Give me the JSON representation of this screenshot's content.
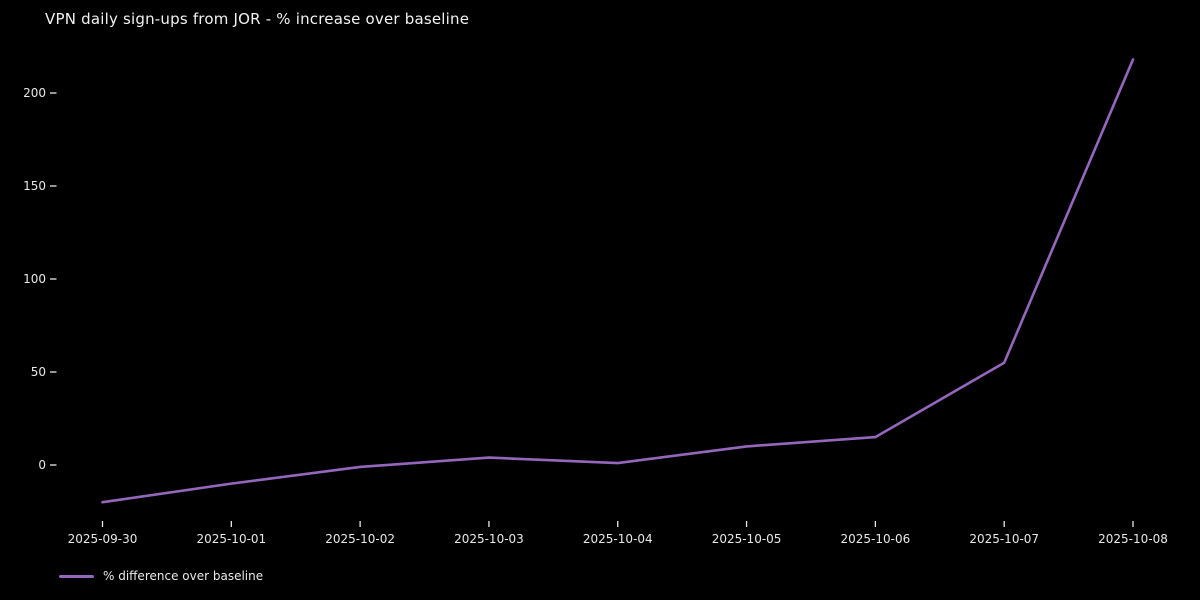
{
  "title": "VPN daily sign-ups from JOR - % increase over baseline",
  "colors": {
    "background": "#000000",
    "title_text": "#f2f2f2",
    "tick_text": "#e8e8e8",
    "line": "#9467bd",
    "legend_text": "#eaeaea"
  },
  "legend": {
    "label": "% difference over baseline"
  },
  "chart_data": {
    "type": "line",
    "title": "VPN daily sign-ups from JOR - % increase over baseline",
    "x": [
      "2025-09-30",
      "2025-10-01",
      "2025-10-02",
      "2025-10-03",
      "2025-10-04",
      "2025-10-05",
      "2025-10-06",
      "2025-10-07",
      "2025-10-08"
    ],
    "series": [
      {
        "name": "% difference over baseline",
        "color": "#9467bd",
        "values": [
          -20,
          -10,
          -1,
          4,
          1,
          10,
          15,
          55,
          218
        ]
      }
    ],
    "xlabel": "",
    "ylabel": "",
    "yticks": [
      0,
      50,
      100,
      150,
      200
    ],
    "ylim": [
      -30,
      226
    ],
    "grid": false,
    "legend_position": "lower-left"
  }
}
